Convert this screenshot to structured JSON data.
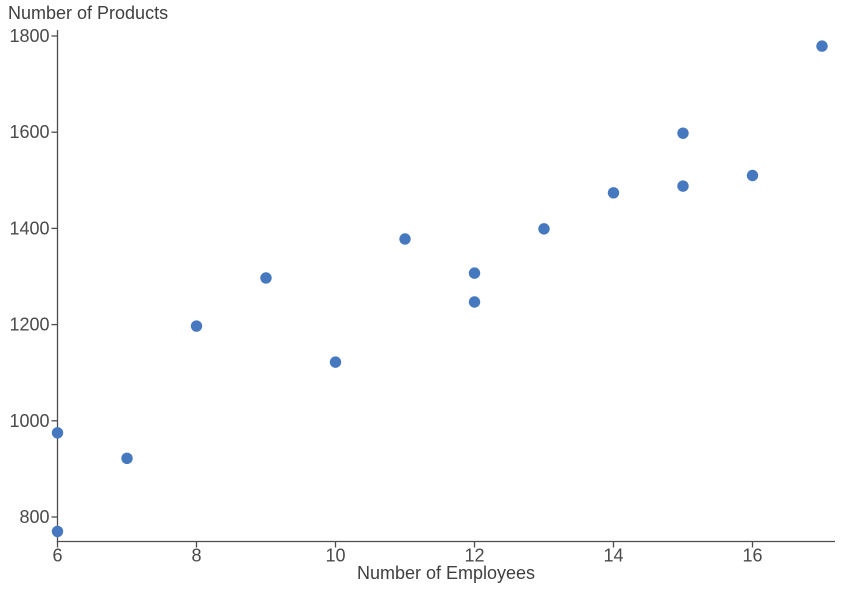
{
  "chart_data": {
    "type": "scatter",
    "title": "",
    "xlabel": "Number of Employees",
    "ylabel": "Number of Products",
    "x": [
      6,
      6,
      7,
      8,
      9,
      10,
      11,
      12,
      12,
      13,
      14,
      15,
      15,
      16,
      17
    ],
    "y": [
      975,
      770,
      922,
      1197,
      1297,
      1122,
      1378,
      1307,
      1247,
      1399,
      1474,
      1598,
      1488,
      1510,
      1779
    ],
    "x_ticks": [
      6,
      8,
      10,
      12,
      14,
      16
    ],
    "y_ticks": [
      800,
      1000,
      1200,
      1400,
      1600,
      1800
    ],
    "xlim": [
      6,
      17.2
    ],
    "ylim": [
      750,
      1812
    ],
    "grid": false,
    "legend": "none",
    "marker_color": "#4678bf",
    "axis_color": "#4d4d4d",
    "tick_text_color": "#4a4a4a",
    "title_text_color": "#3f3f3f"
  }
}
